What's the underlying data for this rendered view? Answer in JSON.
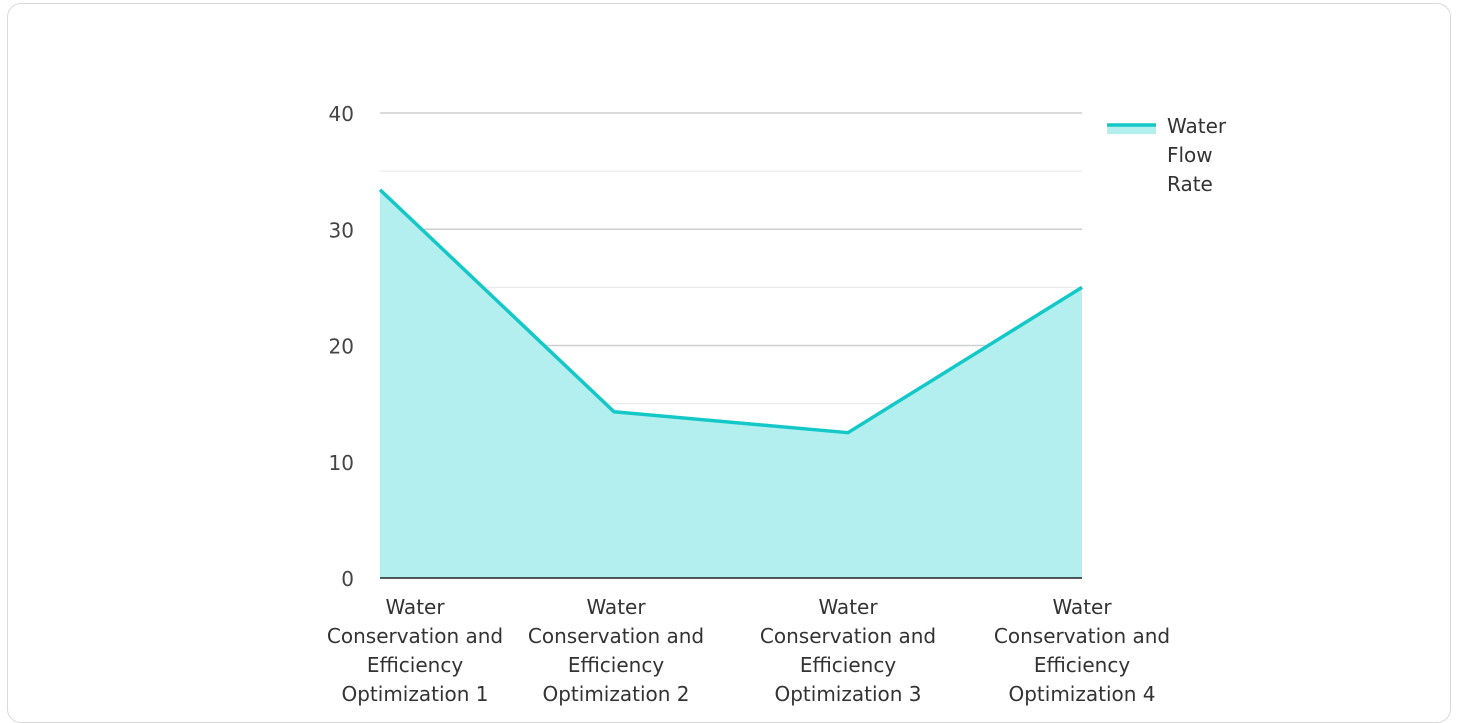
{
  "chart_data": {
    "type": "area",
    "categories": [
      "Water Conservation and Efficiency Optimization 1",
      "Water Conservation and Efficiency Optimization 2",
      "Water Conservation and Efficiency Optimization 3",
      "Water Conservation and Efficiency Optimization 4"
    ],
    "series": [
      {
        "name": "Water Flow Rate",
        "values": [
          33.4,
          14.3,
          12.5,
          25.0
        ]
      }
    ],
    "title": "",
    "xlabel": "",
    "ylabel": "",
    "ylim": [
      0,
      40
    ],
    "yticks": [
      "0",
      "10",
      "20",
      "30",
      "40"
    ],
    "grid": true,
    "legend_position": "top-right",
    "colors": {
      "line": "#14c8c8",
      "fill": "#b2efee",
      "grid": "#cfcfcf",
      "axis": "#222222"
    }
  }
}
